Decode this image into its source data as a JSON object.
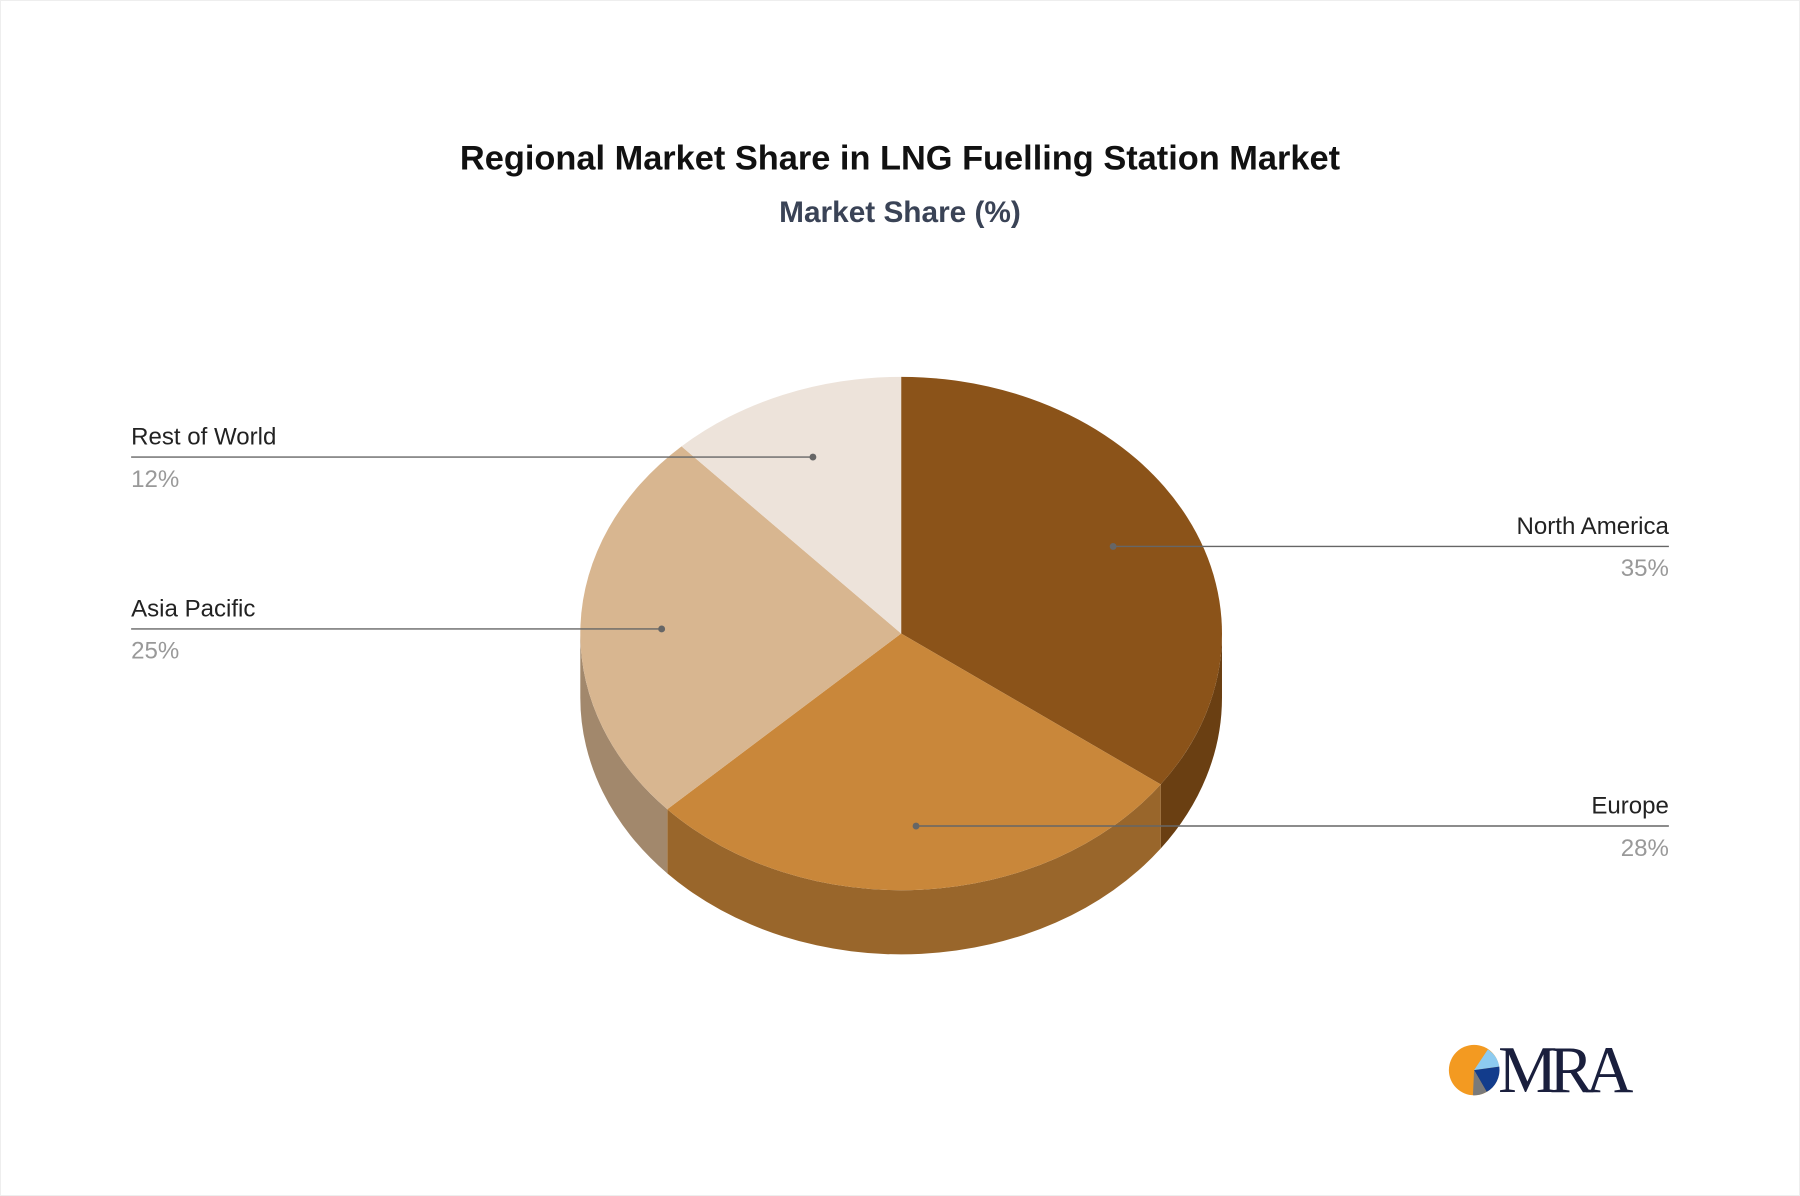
{
  "chart_data": {
    "type": "pie",
    "style": "3d",
    "title": "Regional Market Share in LNG Fuelling Station Market",
    "subtitle": "Market Share (%)",
    "categories": [
      "North America",
      "Europe",
      "Asia Pacific",
      "Rest of World"
    ],
    "values": [
      35,
      28,
      25,
      12
    ],
    "labels": [
      "35%",
      "28%",
      "25%",
      "12%"
    ],
    "colors": [
      "#8B5319",
      "#C9873A",
      "#D8B690",
      "#EDE3DA"
    ],
    "side_colors": [
      "#6A3F12",
      "#99662B",
      "#A2886C",
      "#B3aaa2"
    ]
  },
  "logo": {
    "text": "MRA",
    "colors": [
      "#F39A21",
      "#8DCBF0",
      "#123C8C",
      "#7A7A7A"
    ]
  }
}
